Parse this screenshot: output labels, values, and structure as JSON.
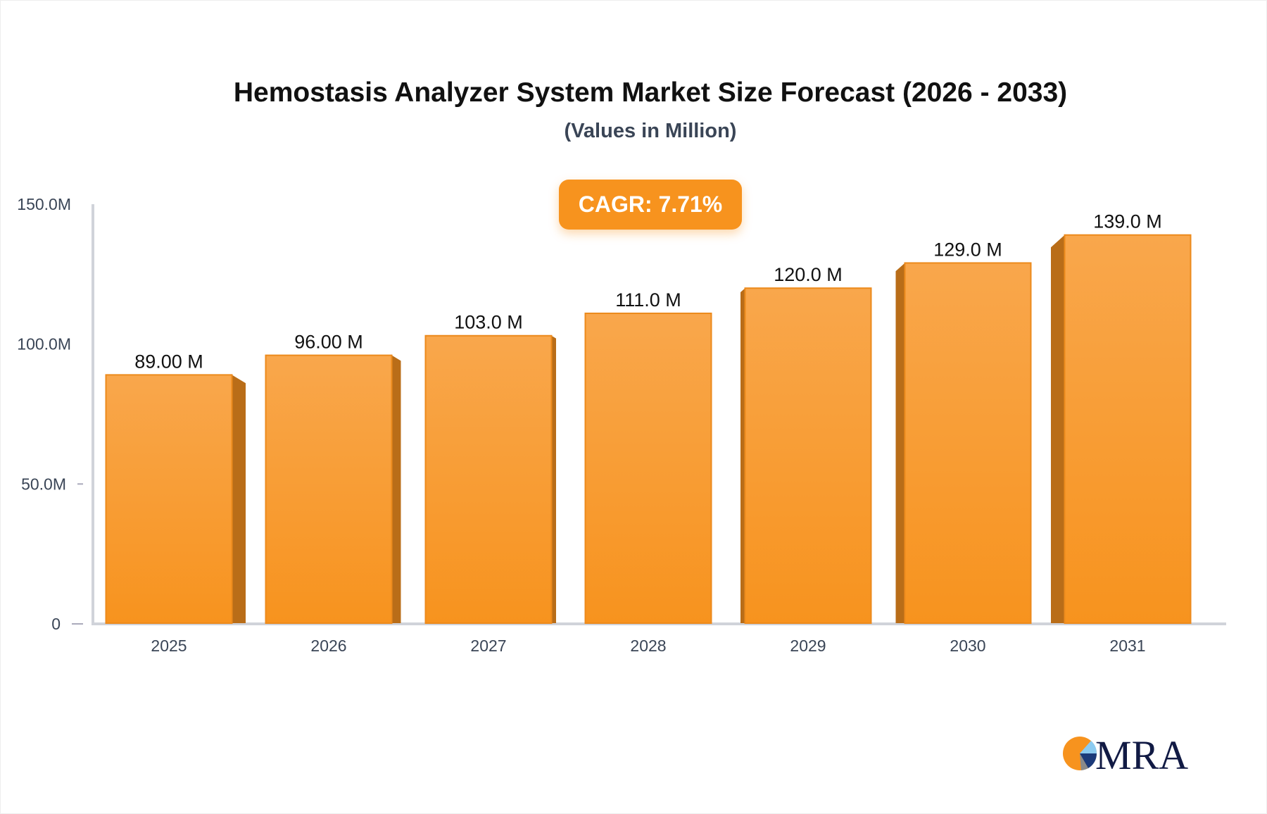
{
  "chart_data": {
    "type": "bar",
    "title": "Hemostasis Analyzer System Market Size Forecast (2026 - 2033)",
    "subtitle": "(Values in Million)",
    "annotation": "CAGR: 7.71%",
    "categories": [
      "2025",
      "2026",
      "2027",
      "2028",
      "2029",
      "2030",
      "2031"
    ],
    "values": [
      89.0,
      96.0,
      103.0,
      111.0,
      120.0,
      129.0,
      139.0
    ],
    "data_labels": [
      "89.00 M",
      "96.00 M",
      "103.0 M",
      "111.0 M",
      "120.0 M",
      "129.0 M",
      "139.0 M"
    ],
    "yticks": [
      0,
      50,
      100,
      150
    ],
    "ytick_labels": [
      "0",
      "50.0M",
      "100.0M",
      "150.0M"
    ],
    "ylim": [
      0,
      150
    ],
    "xlabel": "",
    "ylabel": "",
    "grid": false,
    "colors": {
      "bar_top": "#f9a74c",
      "bar_bottom": "#f7931e",
      "bar_side": "#b96d18",
      "axis": "#d0d3da",
      "badge": "#f7931e"
    }
  },
  "logo": {
    "text": "MRA"
  }
}
